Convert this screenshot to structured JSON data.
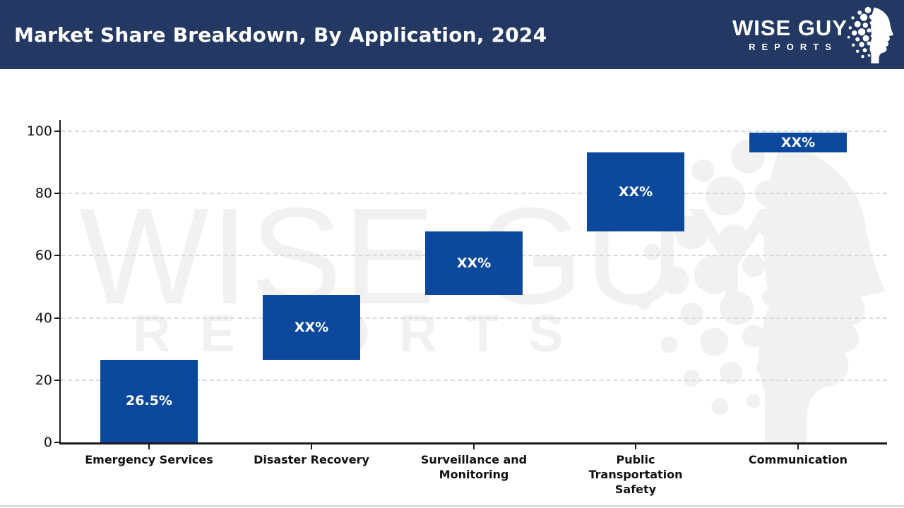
{
  "header": {
    "logo": {
      "line1": "WISE GUY",
      "line2": "REPORTS"
    }
  },
  "watermark": {
    "line1": "WISE GUY",
    "line2": "REPORTS"
  },
  "colors": {
    "header_bg": "#233862",
    "bar": "#0C499D",
    "grid": "#d9d9d9",
    "axis": "#1a1a1a",
    "watermark": "#f1f1f1"
  },
  "chart_data": {
    "type": "bar",
    "subtype": "waterfall",
    "title": "Market Share Breakdown, By Application, 2024",
    "categories": [
      "Emergency Services",
      "Disaster Recovery",
      "Surveillance and\nMonitoring",
      "Public\nTransportation\nSafety",
      "Communication"
    ],
    "series": [
      {
        "name": "Market Share",
        "segments": [
          {
            "category": "Emergency Services",
            "start": 0,
            "end": 26.5,
            "label": "26.5%"
          },
          {
            "category": "Disaster Recovery",
            "start": 26.5,
            "end": 47.3,
            "label": "XX%"
          },
          {
            "category": "Surveillance and Monitoring",
            "start": 47.3,
            "end": 67.7,
            "label": "XX%"
          },
          {
            "category": "Public Transportation Safety",
            "start": 67.7,
            "end": 93.2,
            "label": "XX%"
          },
          {
            "category": "Communication",
            "start": 93.2,
            "end": 99.5,
            "label": "XX%"
          }
        ]
      }
    ],
    "xlabel": "",
    "ylabel": "",
    "ylim": [
      0,
      105
    ],
    "yticks": [
      0,
      20,
      40,
      60,
      80,
      100
    ],
    "grid": "horizontal-dashed",
    "legend_position": "none"
  }
}
